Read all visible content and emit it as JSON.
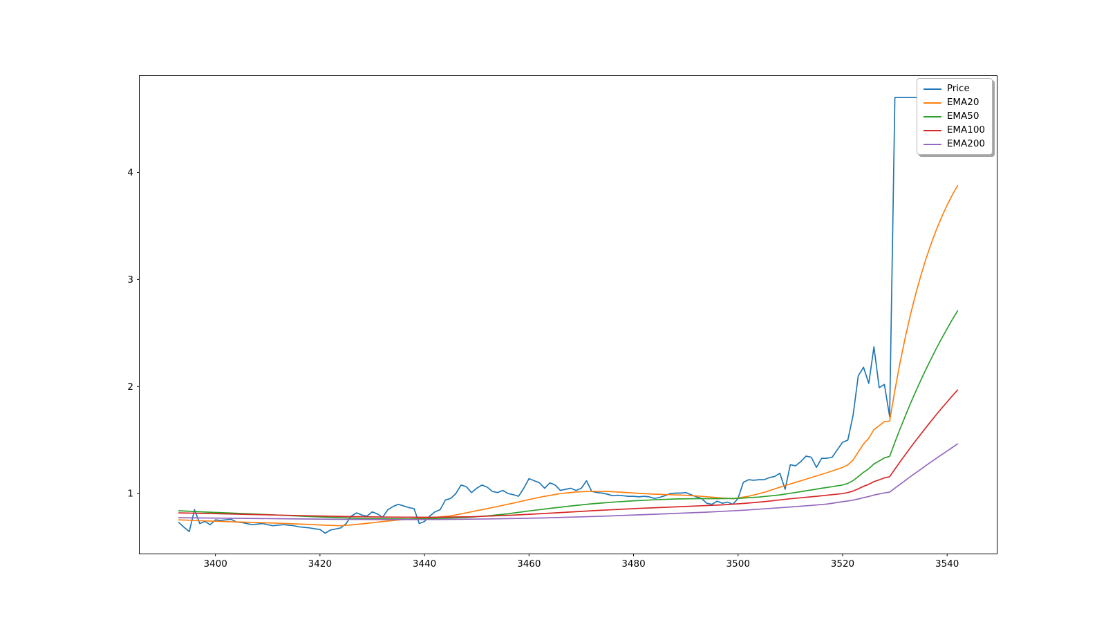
{
  "chart_data": {
    "type": "line",
    "title": "",
    "xlabel": "",
    "ylabel": "",
    "grid": false,
    "background_color": "#ffffff",
    "spine_color": "#000000",
    "legend_position": "upper right",
    "xlim": [
      3385.5,
      3549.5
    ],
    "ylim": [
      0.44,
      4.9
    ],
    "xticks": [
      3400,
      3420,
      3440,
      3460,
      3480,
      3500,
      3520,
      3540
    ],
    "yticks": [
      1,
      2,
      3,
      4
    ],
    "series": [
      {
        "name": "Price",
        "color": "#1f77b4",
        "line_width": 1.7,
        "x0": 3393,
        "x_step": 1,
        "values": [
          0.73,
          0.685,
          0.645,
          0.85,
          0.72,
          0.74,
          0.71,
          0.755,
          0.75,
          0.755,
          0.76,
          0.735,
          0.73,
          0.72,
          0.71,
          0.715,
          0.72,
          0.71,
          0.7,
          0.705,
          0.71,
          0.705,
          0.7,
          0.69,
          0.685,
          0.68,
          0.672,
          0.665,
          0.63,
          0.66,
          0.67,
          0.68,
          0.72,
          0.79,
          0.82,
          0.8,
          0.79,
          0.83,
          0.81,
          0.78,
          0.85,
          0.88,
          0.9,
          0.885,
          0.87,
          0.86,
          0.72,
          0.74,
          0.79,
          0.83,
          0.85,
          0.94,
          0.955,
          1.0,
          1.08,
          1.065,
          1.01,
          1.05,
          1.08,
          1.06,
          1.02,
          1.01,
          1.03,
          1.0,
          0.99,
          0.975,
          1.05,
          1.14,
          1.12,
          1.1,
          1.05,
          1.1,
          1.08,
          1.03,
          1.04,
          1.05,
          1.03,
          1.05,
          1.12,
          1.02,
          1.01,
          1.005,
          0.995,
          0.98,
          0.985,
          0.98,
          0.975,
          0.975,
          0.97,
          0.975,
          0.97,
          0.955,
          0.965,
          0.98,
          1.0,
          1.005,
          1.005,
          1.01,
          0.99,
          0.97,
          0.955,
          0.91,
          0.9,
          0.93,
          0.91,
          0.92,
          0.9,
          0.955,
          1.105,
          1.13,
          1.125,
          1.13,
          1.13,
          1.15,
          1.16,
          1.19,
          1.04,
          1.27,
          1.26,
          1.3,
          1.35,
          1.34,
          1.245,
          1.33,
          1.33,
          1.34,
          1.41,
          1.48,
          1.5,
          1.73,
          2.1,
          2.18,
          2.03,
          2.37,
          1.99,
          2.02,
          1.72,
          4.7,
          4.7,
          4.7,
          4.7,
          4.7,
          4.7,
          4.7,
          4.7,
          4.7,
          4.7,
          4.7,
          4.7,
          4.7
        ]
      },
      {
        "name": "EMA20",
        "color": "#ff7f0e",
        "line_width": 1.7,
        "points": [
          [
            3393,
            0.755
          ],
          [
            3398,
            0.745
          ],
          [
            3403,
            0.737
          ],
          [
            3408,
            0.73
          ],
          [
            3413,
            0.722
          ],
          [
            3418,
            0.712
          ],
          [
            3421,
            0.705
          ],
          [
            3424,
            0.7
          ],
          [
            3427,
            0.712
          ],
          [
            3430,
            0.728
          ],
          [
            3433,
            0.744
          ],
          [
            3436,
            0.758
          ],
          [
            3439,
            0.77
          ],
          [
            3442,
            0.778
          ],
          [
            3445,
            0.792
          ],
          [
            3448,
            0.82
          ],
          [
            3451,
            0.85
          ],
          [
            3454,
            0.88
          ],
          [
            3457,
            0.912
          ],
          [
            3460,
            0.945
          ],
          [
            3463,
            0.975
          ],
          [
            3466,
            1.0
          ],
          [
            3469,
            1.015
          ],
          [
            3472,
            1.022
          ],
          [
            3475,
            1.02
          ],
          [
            3478,
            1.012
          ],
          [
            3481,
            1.002
          ],
          [
            3484,
            0.995
          ],
          [
            3487,
            0.99
          ],
          [
            3490,
            0.985
          ],
          [
            3493,
            0.975
          ],
          [
            3496,
            0.962
          ],
          [
            3499,
            0.952
          ],
          [
            3502,
            0.975
          ],
          [
            3505,
            1.012
          ],
          [
            3508,
            1.06
          ],
          [
            3511,
            1.105
          ],
          [
            3514,
            1.15
          ],
          [
            3517,
            1.195
          ],
          [
            3520,
            1.245
          ],
          [
            3521,
            1.269
          ],
          [
            3522,
            1.313
          ],
          [
            3523,
            1.388
          ],
          [
            3524,
            1.463
          ],
          [
            3525,
            1.517
          ],
          [
            3526,
            1.598
          ],
          [
            3527,
            1.635
          ],
          [
            3528,
            1.672
          ],
          [
            3529,
            1.677
          ],
          [
            3530,
            1.965
          ],
          [
            3531,
            2.225
          ],
          [
            3532,
            2.461
          ],
          [
            3533,
            2.674
          ],
          [
            3534,
            2.867
          ],
          [
            3535,
            3.041
          ],
          [
            3536,
            3.199
          ],
          [
            3537,
            3.342
          ],
          [
            3538,
            3.471
          ],
          [
            3539,
            3.588
          ],
          [
            3540,
            3.694
          ],
          [
            3541,
            3.79
          ],
          [
            3542,
            3.877
          ]
        ]
      },
      {
        "name": "EMA50",
        "color": "#2ca02c",
        "line_width": 1.7,
        "points": [
          [
            3393,
            0.84
          ],
          [
            3398,
            0.828
          ],
          [
            3403,
            0.818
          ],
          [
            3408,
            0.808
          ],
          [
            3413,
            0.797
          ],
          [
            3418,
            0.786
          ],
          [
            3423,
            0.776
          ],
          [
            3428,
            0.768
          ],
          [
            3433,
            0.765
          ],
          [
            3438,
            0.764
          ],
          [
            3443,
            0.768
          ],
          [
            3448,
            0.777
          ],
          [
            3452,
            0.792
          ],
          [
            3456,
            0.812
          ],
          [
            3460,
            0.838
          ],
          [
            3464,
            0.862
          ],
          [
            3468,
            0.885
          ],
          [
            3472,
            0.905
          ],
          [
            3476,
            0.92
          ],
          [
            3480,
            0.933
          ],
          [
            3484,
            0.942
          ],
          [
            3488,
            0.95
          ],
          [
            3492,
            0.953
          ],
          [
            3496,
            0.953
          ],
          [
            3500,
            0.956
          ],
          [
            3504,
            0.968
          ],
          [
            3508,
            0.988
          ],
          [
            3512,
            1.018
          ],
          [
            3516,
            1.05
          ],
          [
            3520,
            1.08
          ],
          [
            3521,
            1.096
          ],
          [
            3522,
            1.121
          ],
          [
            3523,
            1.159
          ],
          [
            3524,
            1.199
          ],
          [
            3525,
            1.232
          ],
          [
            3526,
            1.277
          ],
          [
            3527,
            1.305
          ],
          [
            3528,
            1.333
          ],
          [
            3529,
            1.348
          ],
          [
            3530,
            1.479
          ],
          [
            3531,
            1.605
          ],
          [
            3532,
            1.726
          ],
          [
            3533,
            1.843
          ],
          [
            3534,
            1.955
          ],
          [
            3535,
            2.063
          ],
          [
            3536,
            2.166
          ],
          [
            3537,
            2.265
          ],
          [
            3538,
            2.361
          ],
          [
            3539,
            2.453
          ],
          [
            3540,
            2.541
          ],
          [
            3541,
            2.626
          ],
          [
            3542,
            2.707
          ]
        ]
      },
      {
        "name": "EMA100",
        "color": "#d62728",
        "line_width": 1.7,
        "points": [
          [
            3393,
            0.82
          ],
          [
            3401,
            0.812
          ],
          [
            3409,
            0.803
          ],
          [
            3417,
            0.794
          ],
          [
            3425,
            0.786
          ],
          [
            3433,
            0.781
          ],
          [
            3441,
            0.779
          ],
          [
            3449,
            0.784
          ],
          [
            3457,
            0.799
          ],
          [
            3465,
            0.82
          ],
          [
            3473,
            0.843
          ],
          [
            3481,
            0.862
          ],
          [
            3489,
            0.878
          ],
          [
            3497,
            0.895
          ],
          [
            3501,
            0.908
          ],
          [
            3505,
            0.925
          ],
          [
            3510,
            0.952
          ],
          [
            3515,
            0.975
          ],
          [
            3520,
            1.0
          ],
          [
            3521,
            1.01
          ],
          [
            3522,
            1.024
          ],
          [
            3523,
            1.045
          ],
          [
            3524,
            1.068
          ],
          [
            3525,
            1.087
          ],
          [
            3526,
            1.112
          ],
          [
            3527,
            1.129
          ],
          [
            3528,
            1.147
          ],
          [
            3529,
            1.158
          ],
          [
            3530,
            1.228
          ],
          [
            3531,
            1.297
          ],
          [
            3532,
            1.364
          ],
          [
            3533,
            1.43
          ],
          [
            3534,
            1.495
          ],
          [
            3535,
            1.558
          ],
          [
            3536,
            1.62
          ],
          [
            3537,
            1.681
          ],
          [
            3538,
            1.741
          ],
          [
            3539,
            1.8
          ],
          [
            3540,
            1.857
          ],
          [
            3541,
            1.913
          ],
          [
            3542,
            1.968
          ]
        ]
      },
      {
        "name": "EMA200",
        "color": "#9467bd",
        "line_width": 1.7,
        "points": [
          [
            3393,
            0.775
          ],
          [
            3403,
            0.77
          ],
          [
            3413,
            0.765
          ],
          [
            3423,
            0.76
          ],
          [
            3433,
            0.757
          ],
          [
            3443,
            0.758
          ],
          [
            3453,
            0.764
          ],
          [
            3463,
            0.773
          ],
          [
            3473,
            0.787
          ],
          [
            3483,
            0.805
          ],
          [
            3493,
            0.825
          ],
          [
            3501,
            0.845
          ],
          [
            3508,
            0.868
          ],
          [
            3514,
            0.89
          ],
          [
            3517,
            0.902
          ],
          [
            3520,
            0.925
          ],
          [
            3521,
            0.931
          ],
          [
            3522,
            0.939
          ],
          [
            3523,
            0.95
          ],
          [
            3524,
            0.962
          ],
          [
            3525,
            0.973
          ],
          [
            3526,
            0.987
          ],
          [
            3527,
            0.997
          ],
          [
            3528,
            1.007
          ],
          [
            3529,
            1.014
          ],
          [
            3530,
            1.051
          ],
          [
            3531,
            1.087
          ],
          [
            3532,
            1.123
          ],
          [
            3533,
            1.159
          ],
          [
            3534,
            1.194
          ],
          [
            3535,
            1.229
          ],
          [
            3536,
            1.264
          ],
          [
            3537,
            1.298
          ],
          [
            3538,
            1.332
          ],
          [
            3539,
            1.365
          ],
          [
            3540,
            1.398
          ],
          [
            3541,
            1.431
          ],
          [
            3542,
            1.464
          ]
        ]
      }
    ]
  }
}
